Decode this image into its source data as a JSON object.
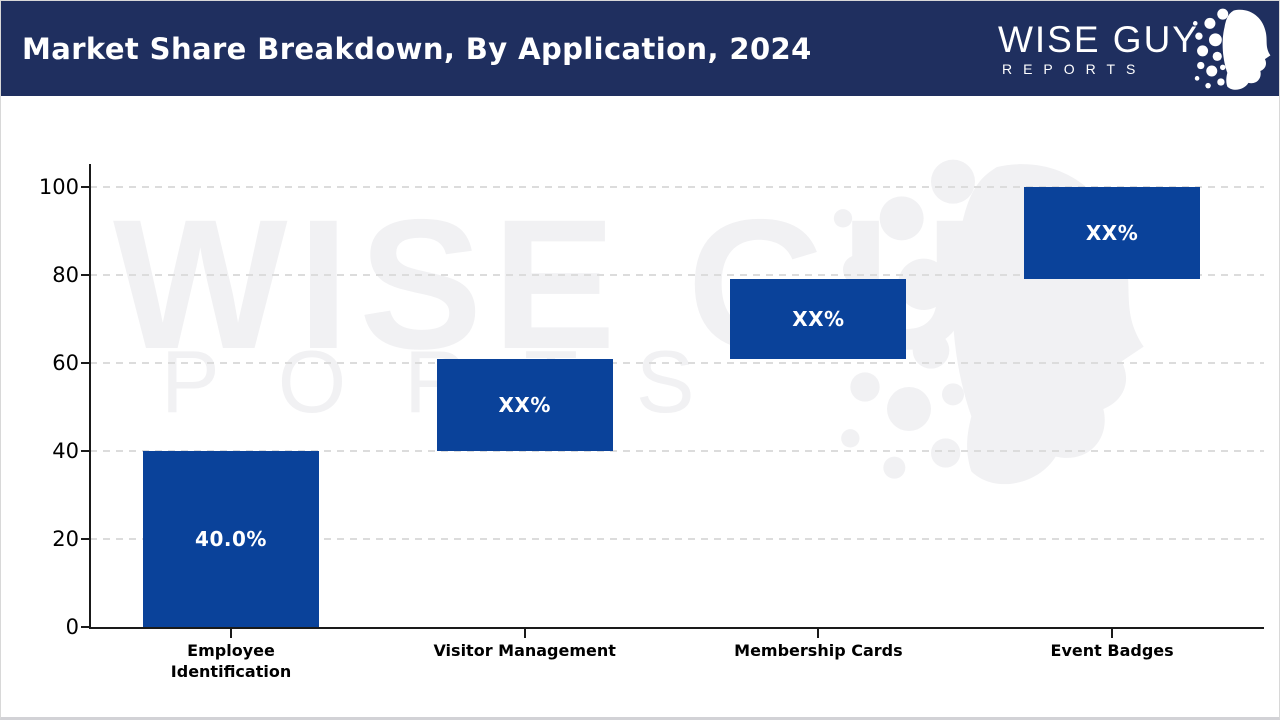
{
  "header": {
    "title": "Market Share Breakdown, By Application, 2024",
    "bg_color": "#1f2f5f",
    "logo": {
      "line1": "WISE GUY",
      "line2": "REPORTS"
    }
  },
  "watermark": {
    "line1": "WISE GUY",
    "line2": "PORTS"
  },
  "chart_data": {
    "type": "bar",
    "subtype": "waterfall",
    "title": "Market Share Breakdown, By Application, 2024",
    "categories": [
      "Employee Identification",
      "Visitor Management",
      "Membership Cards",
      "Event Badges"
    ],
    "segments": [
      {
        "category": "Employee Identification",
        "start": 0,
        "end": 40,
        "label": "40.0%"
      },
      {
        "category": "Visitor Management",
        "start": 40,
        "end": 61,
        "label": "XX%"
      },
      {
        "category": "Membership Cards",
        "start": 61,
        "end": 79,
        "label": "XX%"
      },
      {
        "category": "Event Badges",
        "start": 79,
        "end": 100,
        "label": "XX%"
      }
    ],
    "ylim": [
      0,
      100
    ],
    "yticks": [
      0,
      20,
      40,
      60,
      80,
      100
    ],
    "grid": "horizontal-dashed",
    "legend": "none",
    "bar_color": "#0a429a",
    "bar_label_color": "#ffffff",
    "axis_color": "#1a1a1a"
  }
}
